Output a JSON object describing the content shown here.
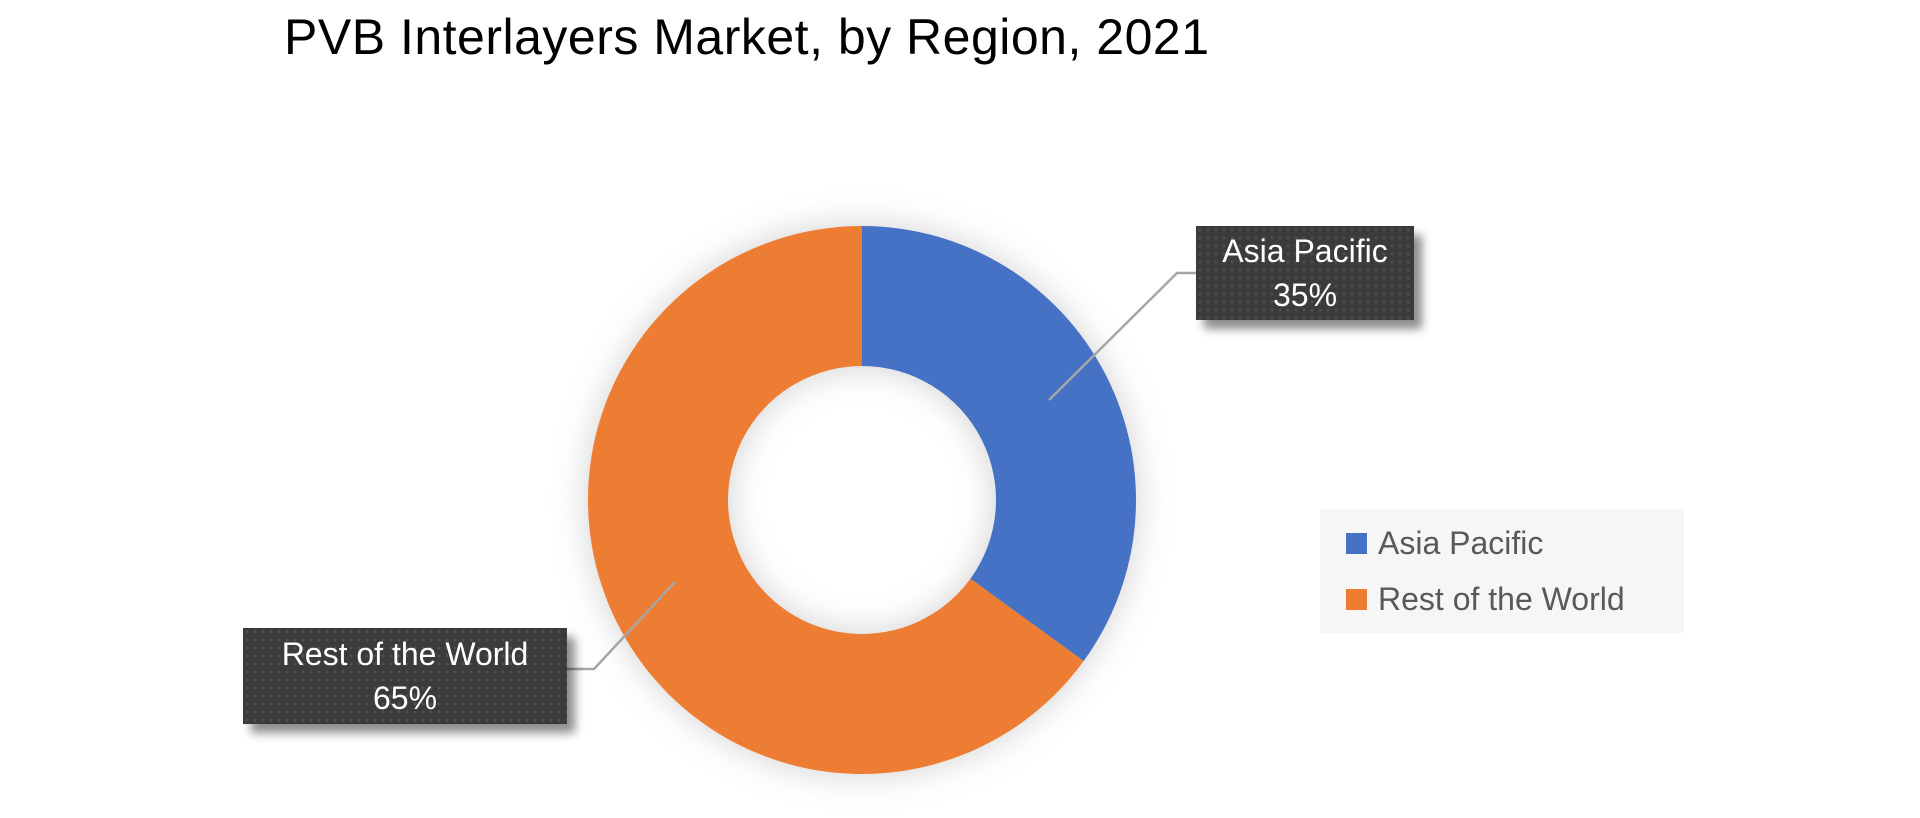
{
  "title": "PVB Interlayers Market, by Region, 2021",
  "chart_data": {
    "type": "pie",
    "subtype": "donut",
    "title": "PVB Interlayers Market, by Region, 2021",
    "categories": [
      "Asia Pacific",
      "Rest of the World"
    ],
    "values": [
      35,
      65
    ],
    "unit": "percent",
    "colors": [
      "#4472C4",
      "#ED7D31"
    ],
    "start_angle_deg": 0,
    "direction": "clockwise",
    "hole_ratio": 0.49,
    "legend_position": "right",
    "data_labels": [
      "Asia Pacific 35%",
      "Rest of the World 65%"
    ]
  },
  "callouts": [
    {
      "id": "asia-pacific",
      "line1": "Asia Pacific",
      "line2": "35%",
      "bg": "#3B3B3B",
      "text_color": "#FFFFFF"
    },
    {
      "id": "rest-of-world",
      "line1": "Rest of the World",
      "line2": "65%",
      "bg": "#3B3B3B",
      "text_color": "#FFFFFF"
    }
  ],
  "legend": {
    "items": [
      {
        "label": "Asia Pacific",
        "color": "#4472C4"
      },
      {
        "label": "Rest of the World",
        "color": "#ED7D31"
      }
    ],
    "background": "#F6F6F6",
    "text_color": "#595959"
  },
  "leader_line_color": "#A6A6A6"
}
